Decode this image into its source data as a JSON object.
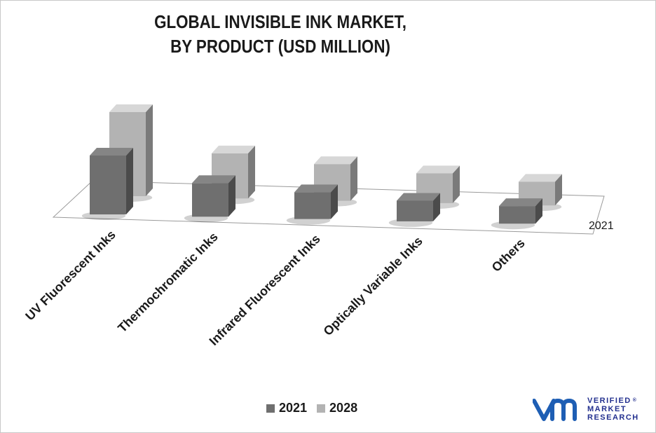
{
  "title": {
    "line1": "GLOBAL INVISIBLE INK MARKET,",
    "line2": "BY PRODUCT (USD MILLION)"
  },
  "chart_data": {
    "type": "bar",
    "variant": "3d-clustered-column",
    "categories": [
      "UV Fluorescent Inks",
      "Thermochromatic Inks",
      "Infrared Fluorescent Inks",
      "Optically Variable Inks",
      "Others"
    ],
    "series": [
      {
        "name": "2021",
        "values": [
          77,
          44,
          35,
          27,
          23
        ],
        "color": "#6f6f6f"
      },
      {
        "name": "2028",
        "values": [
          110,
          59,
          48,
          39,
          31
        ],
        "color": "#b3b3b3"
      }
    ],
    "depth_axis_label": "2021",
    "axis_labels_visible": false,
    "grid": false,
    "legend_position": "bottom"
  },
  "legend": {
    "items": [
      {
        "label": "2021",
        "color": "#6f6f6f"
      },
      {
        "label": "2028",
        "color": "#b3b3b3"
      }
    ]
  },
  "logo": {
    "line1": "VERIFIED",
    "line2": "MARKET",
    "line3": "RESEARCH",
    "registered": "®",
    "brand_color": "#1e5eb4",
    "text_color": "#23308f"
  }
}
